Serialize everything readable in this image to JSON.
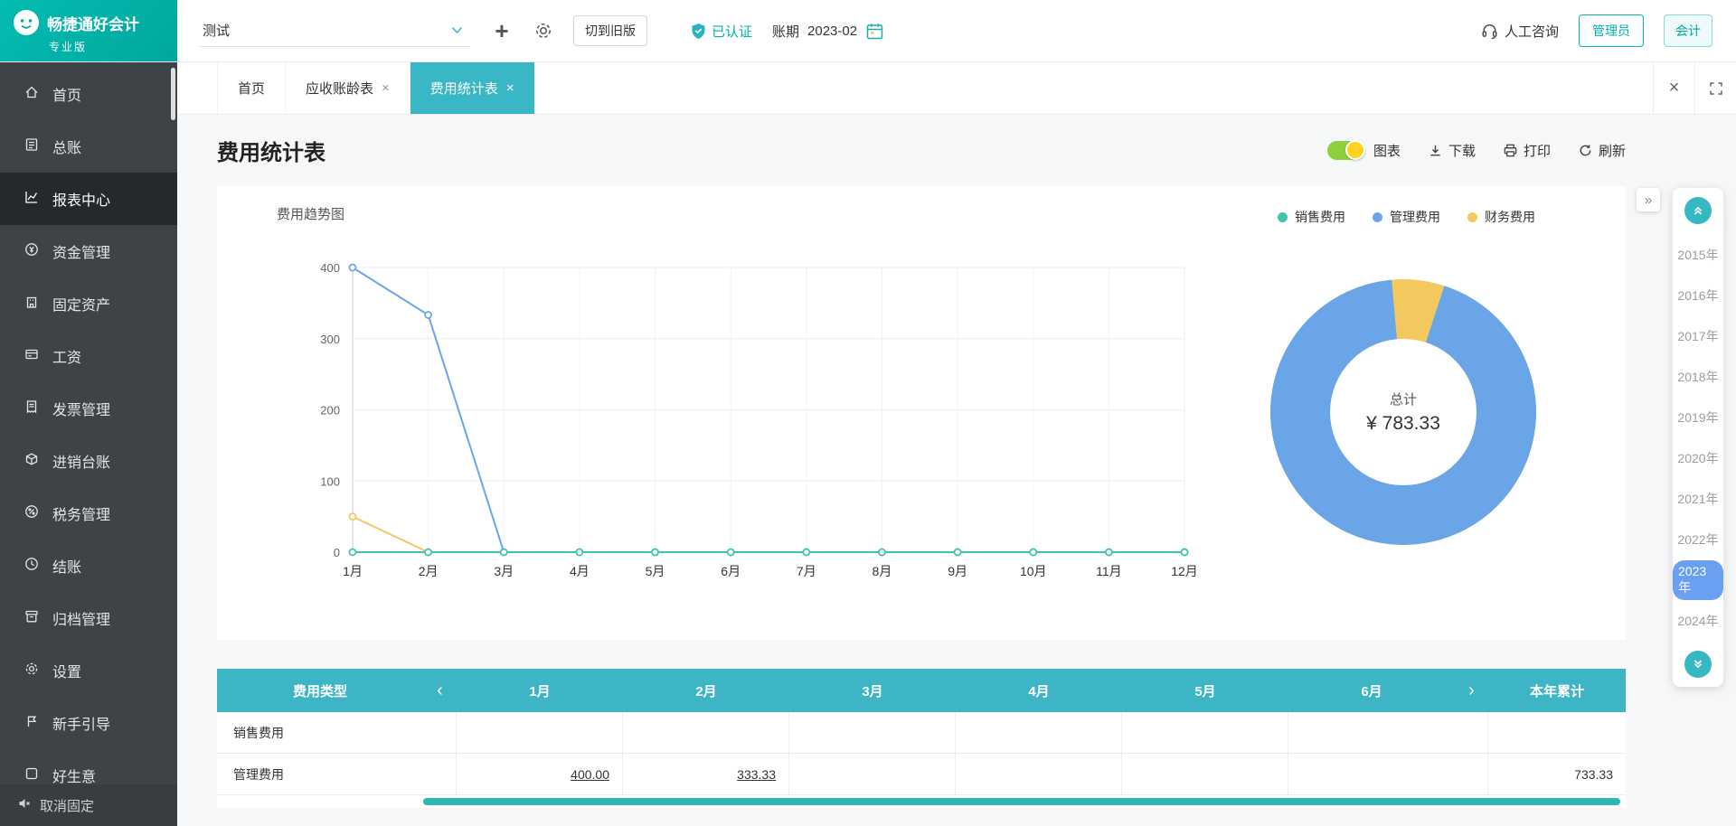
{
  "icons": {
    "plus": "+",
    "close": "×",
    "prev": "‹",
    "next": "›",
    "collapse": "»"
  },
  "header": {
    "brand": "畅捷通好会计",
    "brand_sub": "专业版",
    "company_select": "测试",
    "switch_old_label": "切到旧版",
    "certified_label": "已认证",
    "period_label": "账期",
    "period_value": "2023-02",
    "support_label": "人工咨询",
    "admin_label": "管理员",
    "role_label": "会计"
  },
  "sidebar": {
    "items": [
      {
        "label": "首页"
      },
      {
        "label": "总账"
      },
      {
        "label": "报表中心"
      },
      {
        "label": "资金管理"
      },
      {
        "label": "固定资产"
      },
      {
        "label": "工资"
      },
      {
        "label": "发票管理"
      },
      {
        "label": "进销台账"
      },
      {
        "label": "税务管理"
      },
      {
        "label": "结账"
      },
      {
        "label": "归档管理"
      },
      {
        "label": "设置"
      },
      {
        "label": "新手引导"
      },
      {
        "label": "好生意"
      }
    ],
    "unpin_label": "取消固定"
  },
  "tabs": [
    {
      "label": "首页"
    },
    {
      "label": "应收账龄表"
    },
    {
      "label": "费用统计表"
    }
  ],
  "page": {
    "title": "费用统计表",
    "toolbar": {
      "chart_toggle_label": "图表",
      "download_label": "下载",
      "print_label": "打印",
      "refresh_label": "刷新"
    }
  },
  "chart_data": [
    {
      "type": "line",
      "title": "费用趋势图",
      "x": [
        "1月",
        "2月",
        "3月",
        "4月",
        "5月",
        "6月",
        "7月",
        "8月",
        "9月",
        "10月",
        "11月",
        "12月"
      ],
      "series": [
        {
          "name": "销售费用",
          "color": "#3ec6ad",
          "values": [
            0,
            0,
            0,
            0,
            0,
            0,
            0,
            0,
            0,
            0,
            0,
            0
          ]
        },
        {
          "name": "管理费用",
          "color": "#6aa5e8",
          "values": [
            400,
            333.33,
            0,
            0,
            0,
            0,
            0,
            0,
            0,
            0,
            0,
            0
          ]
        },
        {
          "name": "财务费用",
          "color": "#f3c85f",
          "values": [
            50,
            0,
            0,
            0,
            0,
            0,
            0,
            0,
            0,
            0,
            0,
            0
          ]
        }
      ],
      "ylim": [
        0,
        400
      ],
      "yticks": [
        0,
        100,
        200,
        300,
        400
      ],
      "legend_position": "top-right",
      "grid": true
    },
    {
      "type": "pie",
      "center_label": "总计",
      "center_value": "¥ 783.33",
      "slices": [
        {
          "name": "销售费用",
          "value": 0,
          "color": "#3ec6ad"
        },
        {
          "name": "管理费用",
          "value": 733.33,
          "color": "#6aa5e8"
        },
        {
          "name": "财务费用",
          "value": 50,
          "color": "#f3c85f"
        }
      ],
      "total": 783.33
    }
  ],
  "table": {
    "col_type": "费用类型",
    "months": [
      "1月",
      "2月",
      "3月",
      "4月",
      "5月",
      "6月"
    ],
    "col_total": "本年累计",
    "rows": [
      {
        "name": "销售费用",
        "m1": "",
        "m2": "",
        "m3": "",
        "m4": "",
        "m5": "",
        "m6": "",
        "total": ""
      },
      {
        "name": "管理费用",
        "m1": "400.00",
        "m2": "333.33",
        "m3": "",
        "m4": "",
        "m5": "",
        "m6": "",
        "total": "733.33"
      }
    ]
  },
  "year_panel": {
    "years": [
      "2015年",
      "2016年",
      "2017年",
      "2018年",
      "2019年",
      "2020年",
      "2021年",
      "2022年",
      "2023年",
      "2024年"
    ],
    "selected": "2023年"
  }
}
